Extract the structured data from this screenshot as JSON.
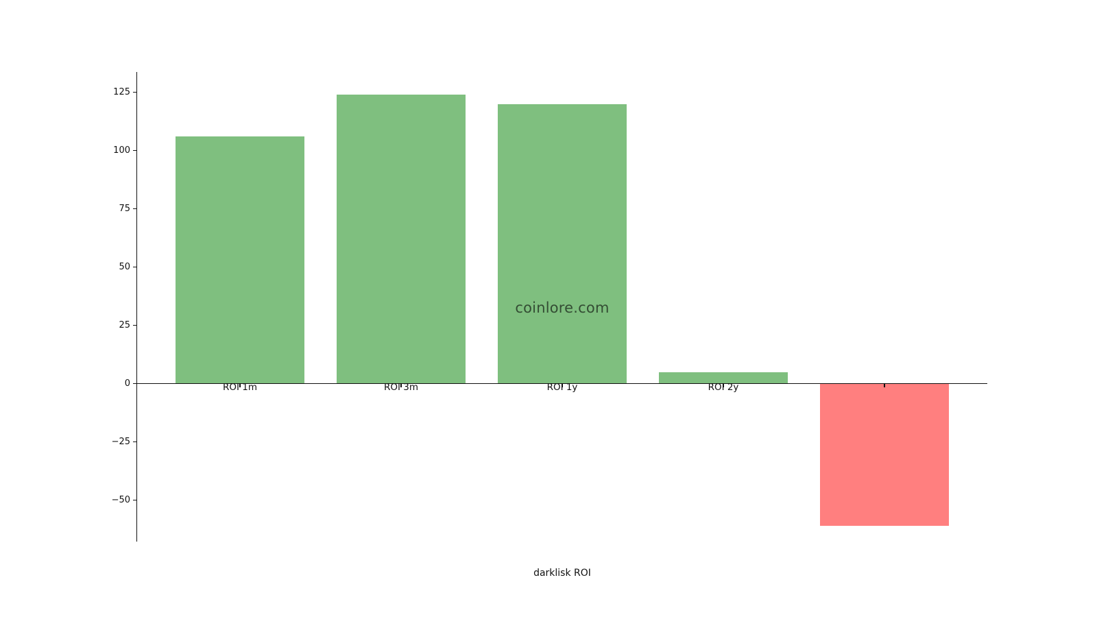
{
  "chart_data": {
    "type": "bar",
    "title": "darklisk ROI",
    "watermark": "coinlore.com",
    "categories": [
      "ROI 1m",
      "ROI 3m",
      "ROI 1y",
      "ROI 2y",
      ""
    ],
    "values": [
      106,
      124,
      120,
      5,
      -61
    ],
    "series": [
      {
        "name": "darklisk ROI %",
        "values": [
          106,
          124,
          120,
          5,
          -61
        ]
      }
    ],
    "bar_colors": [
      "#7fbf7f",
      "#7fbf7f",
      "#7fbf7f",
      "#7fbf7f",
      "#ff7f7f"
    ],
    "positive_color": "#7fbf7f",
    "negative_color": "#ff7f7f",
    "xlabel": "darklisk ROI",
    "ylabel": "",
    "y_ticks": [
      {
        "label": "125",
        "value": 125
      },
      {
        "label": "100",
        "value": 100
      },
      {
        "label": "75",
        "value": 75
      },
      {
        "label": "50",
        "value": 50
      },
      {
        "label": "25",
        "value": 25
      },
      {
        "label": "0",
        "value": 0
      },
      {
        "label": "−25",
        "value": -25
      },
      {
        "label": "−50",
        "value": -50
      }
    ],
    "ylim": [
      -67.5,
      133.5
    ],
    "grid": false,
    "legend": null,
    "axis_color": "#111111",
    "background": "#ffffff"
  }
}
